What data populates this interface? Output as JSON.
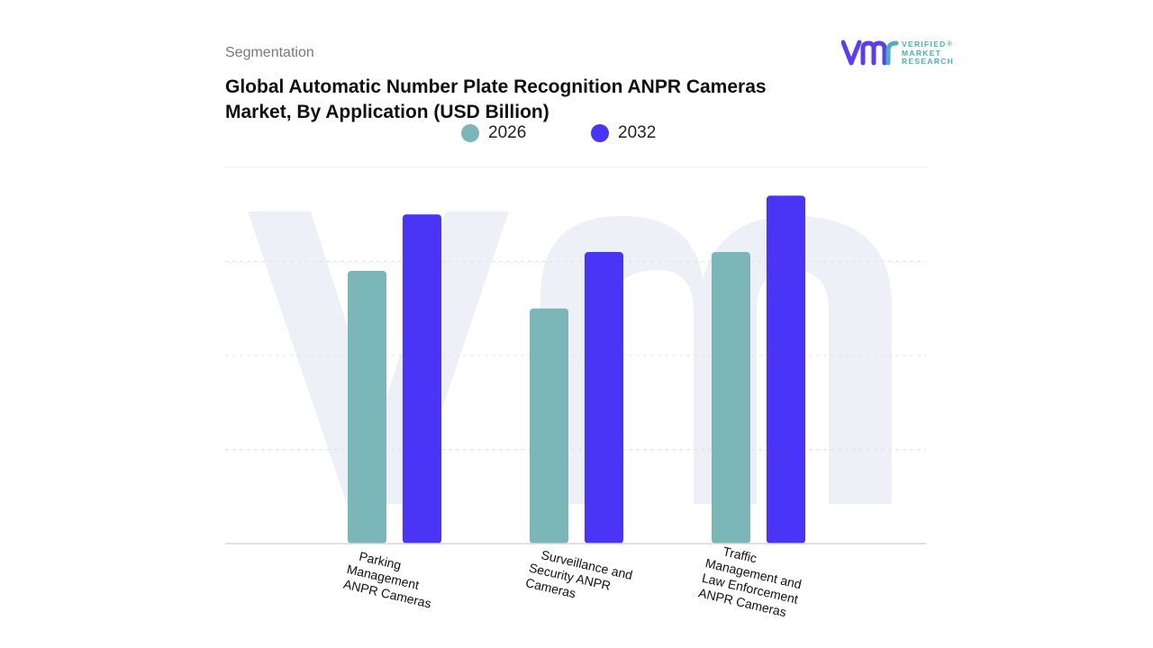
{
  "header": {
    "subtitle": "Segmentation",
    "title": "Global Automatic Number Plate Recognition ANPR Cameras Market, By Application (USD Billion)"
  },
  "logo": {
    "line1": "VERIFIED",
    "line2": "MARKET",
    "line3": "RESEARCH",
    "registered": "®"
  },
  "colors": {
    "series_2026": "#7bb6b9",
    "series_2032": "#4a35f7",
    "grid": "#e3e3e3",
    "axis": "#d9d9d9",
    "watermark": "#eef0f7",
    "logo_purple": "#5b3df5",
    "logo_teal": "#4ab0b8"
  },
  "chart_data": {
    "type": "bar",
    "title": "Global Automatic Number Plate Recognition ANPR Cameras Market, By Application (USD Billion)",
    "categories": [
      "Parking Management ANPR Cameras",
      "Surveillance and Security ANPR Cameras",
      "Traffic Management and Law Enforcement ANPR Cameras"
    ],
    "category_lines": [
      [
        "Parking",
        "Management",
        "ANPR Cameras"
      ],
      [
        "Surveillance and",
        "Security ANPR",
        "Cameras"
      ],
      [
        "Traffic",
        "Management and",
        "Law Enforcement",
        "ANPR Cameras"
      ]
    ],
    "series": [
      {
        "name": "2026",
        "values": [
          2.9,
          2.5,
          3.1
        ]
      },
      {
        "name": "2032",
        "values": [
          3.5,
          3.1,
          3.7
        ]
      }
    ],
    "ylim": [
      0,
      4
    ],
    "grid": true,
    "legend": "top-center",
    "xlabel": "",
    "ylabel": ""
  }
}
